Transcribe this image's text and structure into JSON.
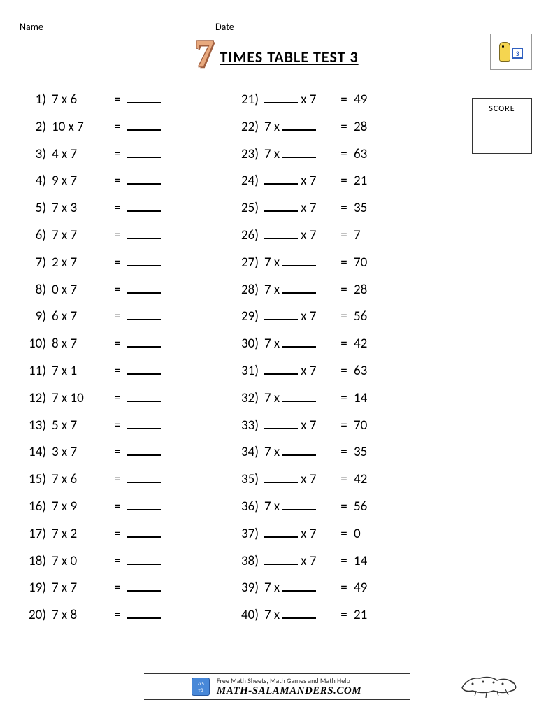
{
  "header": {
    "name_label": "Name",
    "date_label": "Date"
  },
  "title": {
    "digit": "7",
    "text": "TIMES TABLE TEST 3"
  },
  "badge": {
    "cube_value": "3"
  },
  "score": {
    "label": "SCORE"
  },
  "colors": {
    "seven_fill": "#e8a97e",
    "seven_outline": "#a05e3e",
    "text": "#000000",
    "border": "#333333",
    "logo_bg": "#4888d8"
  },
  "left_problems": [
    {
      "n": "1)",
      "expr": "7 x 6",
      "eq": "=",
      "ans_blank": true
    },
    {
      "n": "2)",
      "expr": "10 x 7",
      "eq": "=",
      "ans_blank": true
    },
    {
      "n": "3)",
      "expr": "4 x 7",
      "eq": "=",
      "ans_blank": true
    },
    {
      "n": "4)",
      "expr": "9 x 7",
      "eq": "=",
      "ans_blank": true
    },
    {
      "n": "5)",
      "expr": "7 x 3",
      "eq": "=",
      "ans_blank": true
    },
    {
      "n": "6)",
      "expr": "7 x 7",
      "eq": "=",
      "ans_blank": true
    },
    {
      "n": "7)",
      "expr": "2 x 7",
      "eq": "=",
      "ans_blank": true
    },
    {
      "n": "8)",
      "expr": "0 x 7",
      "eq": "=",
      "ans_blank": true
    },
    {
      "n": "9)",
      "expr": "6 x 7",
      "eq": "=",
      "ans_blank": true
    },
    {
      "n": "10)",
      "expr": "8 x 7",
      "eq": "=",
      "ans_blank": true
    },
    {
      "n": "11)",
      "expr": "7 x 1",
      "eq": "=",
      "ans_blank": true
    },
    {
      "n": "12)",
      "expr": "7 x 10",
      "eq": "=",
      "ans_blank": true
    },
    {
      "n": "13)",
      "expr": "5 x 7",
      "eq": "=",
      "ans_blank": true
    },
    {
      "n": "14)",
      "expr": "3 x 7",
      "eq": "=",
      "ans_blank": true
    },
    {
      "n": "15)",
      "expr": "7 x 6",
      "eq": "=",
      "ans_blank": true
    },
    {
      "n": "16)",
      "expr": "7 x 9",
      "eq": "=",
      "ans_blank": true
    },
    {
      "n": "17)",
      "expr": "7 x 2",
      "eq": "=",
      "ans_blank": true
    },
    {
      "n": "18)",
      "expr": "7 x 0",
      "eq": "=",
      "ans_blank": true
    },
    {
      "n": "19)",
      "expr": "7 x 7",
      "eq": "=",
      "ans_blank": true
    },
    {
      "n": "20)",
      "expr": "7 x 8",
      "eq": "=",
      "ans_blank": true
    }
  ],
  "right_problems": [
    {
      "n": "21)",
      "pre": "",
      "blank_pos": "left",
      "post": " x 7",
      "eq": "=",
      "result": "49"
    },
    {
      "n": "22)",
      "pre": "7 x ",
      "blank_pos": "right",
      "post": "",
      "eq": "=",
      "result": "28"
    },
    {
      "n": "23)",
      "pre": "7 x ",
      "blank_pos": "right",
      "post": "",
      "eq": "=",
      "result": "63"
    },
    {
      "n": "24)",
      "pre": "",
      "blank_pos": "left",
      "post": " x 7",
      "eq": "=",
      "result": "21"
    },
    {
      "n": "25)",
      "pre": "",
      "blank_pos": "left",
      "post": " x 7",
      "eq": "=",
      "result": "35"
    },
    {
      "n": "26)",
      "pre": "",
      "blank_pos": "left",
      "post": " x 7",
      "eq": "=",
      "result": "7"
    },
    {
      "n": "27)",
      "pre": "7 x ",
      "blank_pos": "right",
      "post": "",
      "eq": "=",
      "result": "70"
    },
    {
      "n": "28)",
      "pre": "7 x ",
      "blank_pos": "right",
      "post": "",
      "eq": "=",
      "result": "28"
    },
    {
      "n": "29)",
      "pre": "",
      "blank_pos": "left",
      "post": " x 7",
      "eq": "=",
      "result": "56"
    },
    {
      "n": "30)",
      "pre": "7 x ",
      "blank_pos": "right",
      "post": "",
      "eq": "=",
      "result": "42"
    },
    {
      "n": "31)",
      "pre": "",
      "blank_pos": "left",
      "post": " x 7",
      "eq": "=",
      "result": "63"
    },
    {
      "n": "32)",
      "pre": "7 x ",
      "blank_pos": "right",
      "post": "",
      "eq": "=",
      "result": "14"
    },
    {
      "n": "33)",
      "pre": "",
      "blank_pos": "left",
      "post": " x 7",
      "eq": "=",
      "result": "70"
    },
    {
      "n": "34)",
      "pre": "7 x ",
      "blank_pos": "right",
      "post": "",
      "eq": "=",
      "result": "35"
    },
    {
      "n": "35)",
      "pre": "",
      "blank_pos": "left",
      "post": " x 7",
      "eq": "=",
      "result": "42"
    },
    {
      "n": "36)",
      "pre": "7 x ",
      "blank_pos": "right",
      "post": "",
      "eq": "=",
      "result": "56"
    },
    {
      "n": "37)",
      "pre": "",
      "blank_pos": "left",
      "post": " x 7",
      "eq": "=",
      "result": "0"
    },
    {
      "n": "38)",
      "pre": "",
      "blank_pos": "left",
      "post": " x 7",
      "eq": "=",
      "result": "14"
    },
    {
      "n": "39)",
      "pre": "7 x ",
      "blank_pos": "right",
      "post": "",
      "eq": "=",
      "result": "49"
    },
    {
      "n": "40)",
      "pre": "7 x ",
      "blank_pos": "right",
      "post": "",
      "eq": "=",
      "result": "21"
    }
  ],
  "footer": {
    "tagline": "Free Math Sheets, Math Games and Math Help",
    "url": "MATH-SALAMANDERS.COM",
    "logo_top": "7x5",
    "logo_bot": "÷3"
  }
}
